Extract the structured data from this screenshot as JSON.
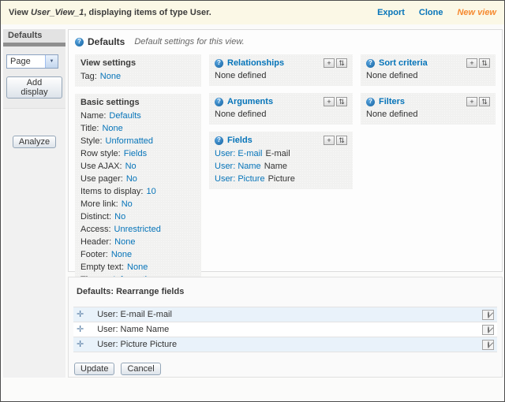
{
  "colors": {
    "link_blue": "#0674b9",
    "new_view_orange": "#f6892f",
    "topbar_bg": "#fbf8e6",
    "box_bg": "#f1f1f0",
    "row_highlight": "#e9f2fa"
  },
  "icons": {
    "help": "?",
    "add": "+",
    "rearrange": "⇅",
    "drag": "✛",
    "select_arrow": "▼"
  },
  "header": {
    "title_prefix": "View ",
    "view_name": "User_View_1",
    "title_suffix": ", displaying items of type User.",
    "links": {
      "export": "Export",
      "clone": "Clone",
      "new_view": "New view"
    }
  },
  "sidebar": {
    "active_tab": "Defaults",
    "display_select_value": "Page",
    "add_display": "Add display",
    "analyze": "Analyze"
  },
  "display_settings": {
    "title": "Defaults",
    "subtitle": "Default settings for this view.",
    "view_settings": {
      "title": "View settings",
      "items": [
        {
          "label": "Tag:",
          "value": "None"
        }
      ]
    },
    "basic_settings": {
      "title": "Basic settings",
      "items": [
        {
          "label": "Name:",
          "value": "Defaults"
        },
        {
          "label": "Title:",
          "value": "None"
        },
        {
          "label": "Style:",
          "value": "Unformatted"
        },
        {
          "label": "Row style:",
          "value": "Fields"
        },
        {
          "label": "Use AJAX:",
          "value": "No"
        },
        {
          "label": "Use pager:",
          "value": "No"
        },
        {
          "label": "Items to display:",
          "value": "10"
        },
        {
          "label": "More link:",
          "value": "No"
        },
        {
          "label": "Distinct:",
          "value": "No"
        },
        {
          "label": "Access:",
          "value": "Unrestricted"
        },
        {
          "label": "Header:",
          "value": "None"
        },
        {
          "label": "Footer:",
          "value": "None"
        },
        {
          "label": "Empty text:",
          "value": "None"
        },
        {
          "label": "Theme:",
          "value": "Information"
        }
      ]
    },
    "relationships": {
      "title": "Relationships",
      "empty": "None defined"
    },
    "arguments": {
      "title": "Arguments",
      "empty": "None defined"
    },
    "fields": {
      "title": "Fields",
      "items": [
        {
          "link": "User: E-mail",
          "suffix": "E-mail"
        },
        {
          "link": "User: Name",
          "suffix": "Name"
        },
        {
          "link": "User: Picture",
          "suffix": "Picture"
        }
      ]
    },
    "sort_criteria": {
      "title": "Sort criteria",
      "empty": "None defined"
    },
    "filters": {
      "title": "Filters",
      "empty": "None defined"
    }
  },
  "rearrange": {
    "title": "Defaults: Rearrange fields",
    "rows": [
      {
        "label": "User: E-mail E-mail"
      },
      {
        "label": "User: Name Name"
      },
      {
        "label": "User: Picture Picture"
      }
    ],
    "update": "Update",
    "cancel": "Cancel"
  }
}
